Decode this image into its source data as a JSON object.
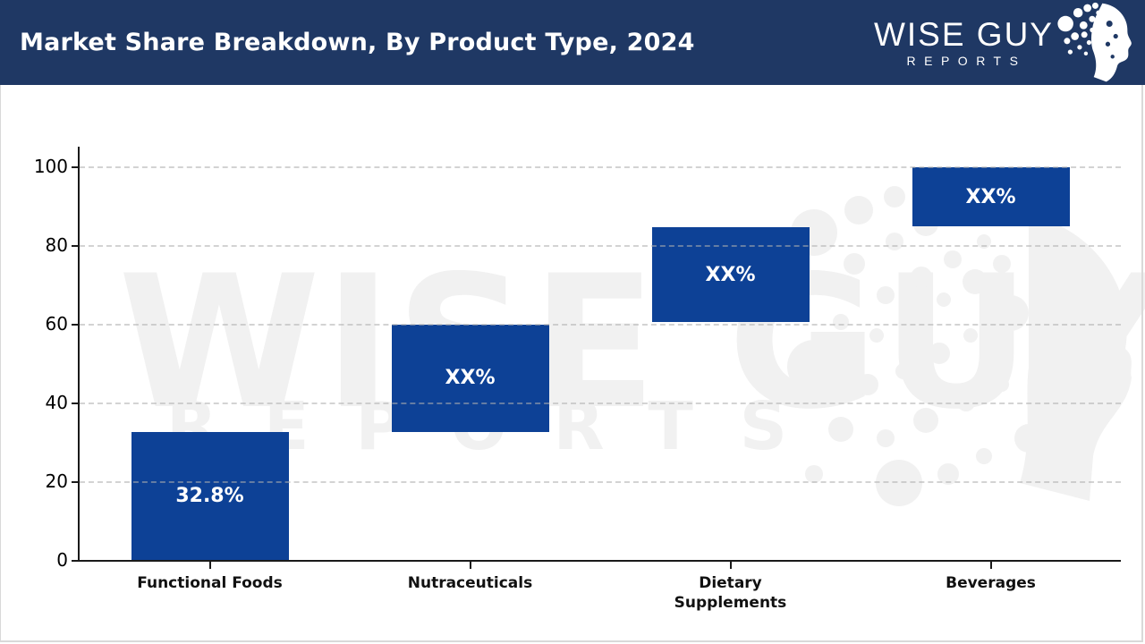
{
  "header": {
    "title": "Market Share Breakdown, By Product Type, 2024",
    "bg_color": "#1f3864",
    "logo": {
      "line1": "WISE GUY",
      "line2": "REPORTS"
    }
  },
  "watermark": {
    "line1": "WISE GUY",
    "line2": "REPORTS"
  },
  "chart_data": {
    "type": "bar",
    "subtype": "waterfall",
    "title": "Market Share Breakdown, By Product Type, 2024",
    "categories": [
      "Functional Foods",
      "Nutraceuticals",
      "Dietary\nSupplements",
      "Beverages"
    ],
    "series": [
      {
        "category": "Functional Foods",
        "start": 0,
        "end": 32.8,
        "label": "32.8%"
      },
      {
        "category": "Nutraceuticals",
        "start": 32.8,
        "end": 60.1,
        "label": "XX%"
      },
      {
        "category": "Dietary Supplements",
        "start": 60.6,
        "end": 84.7,
        "label": "XX%"
      },
      {
        "category": "Beverages",
        "start": 84.9,
        "end": 100,
        "label": "XX%"
      }
    ],
    "ylim": [
      0,
      100
    ],
    "yticks": [
      0,
      20,
      40,
      60,
      80,
      100
    ],
    "xlabel": "",
    "ylabel": "",
    "grid": "horizontal-dashed",
    "legend": "none",
    "bar_color": "#0d4196",
    "bar_label_color": "#ffffff",
    "axis_color": "#1a1a1a"
  }
}
